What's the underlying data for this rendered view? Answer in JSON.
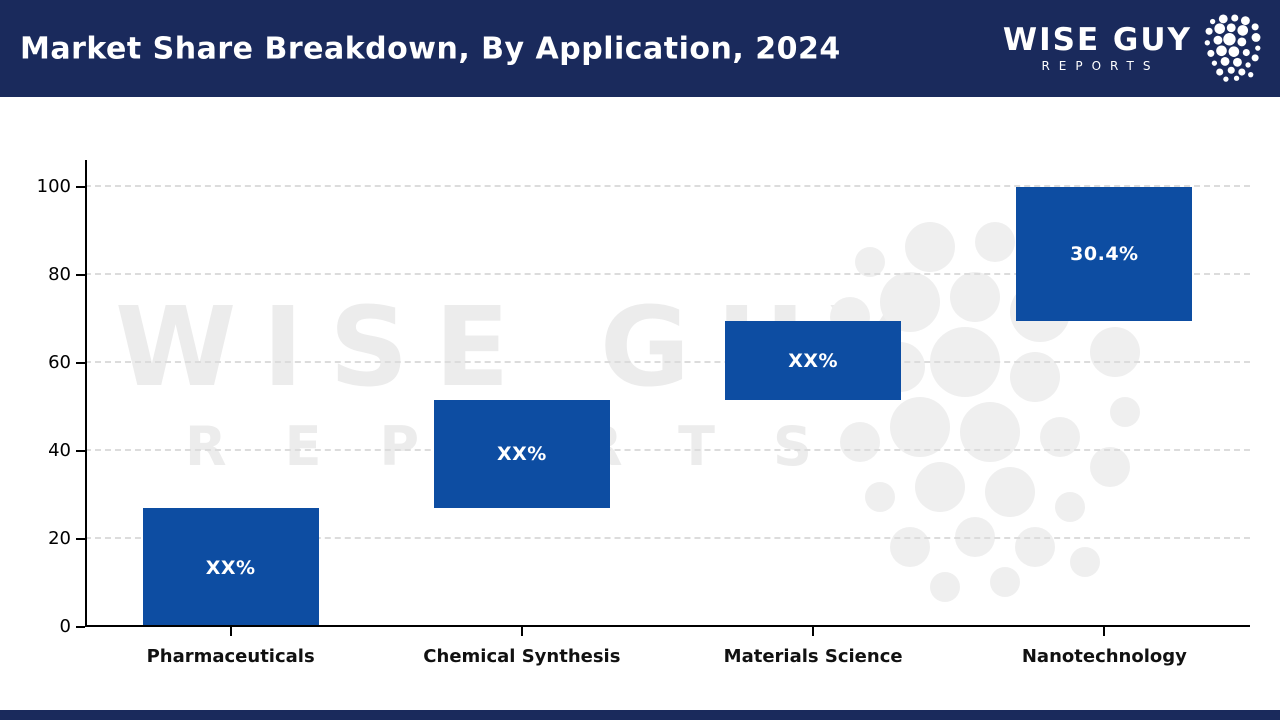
{
  "header": {
    "title": "Market Share Breakdown, By Application, 2024",
    "brand": {
      "name": "WISE GUY",
      "subname": "REPORTS"
    }
  },
  "watermark": {
    "line1": "WISE GUY",
    "line2": "REPORTS"
  },
  "chart_data": {
    "type": "bar",
    "subtype": "waterfall",
    "title": "Market Share Breakdown, By Application, 2024",
    "categories": [
      "Pharmaceuticals",
      "Chemical Synthesis",
      "Materials Science",
      "Nanotechnology"
    ],
    "segments": [
      {
        "category": "Pharmaceuticals",
        "start": 0,
        "end": 27,
        "label": "XX%"
      },
      {
        "category": "Chemical Synthesis",
        "start": 27,
        "end": 51.5,
        "label": "XX%"
      },
      {
        "category": "Materials Science",
        "start": 51.5,
        "end": 69.6,
        "label": "XX%"
      },
      {
        "category": "Nanotechnology",
        "start": 69.6,
        "end": 100,
        "label": "30.4%"
      }
    ],
    "y_ticks": [
      0,
      20,
      40,
      60,
      80,
      100
    ],
    "ylim": [
      0,
      100
    ],
    "grid": "horizontal-dashed",
    "legend": "none",
    "bar_color": "#0d4da2",
    "colors": {
      "header_bg": "#1a2a5c",
      "bar": "#0d4da2",
      "gridline": "#dcdcdc",
      "watermark": "#ececec",
      "text": "#000000",
      "bar_label": "#ffffff"
    }
  }
}
